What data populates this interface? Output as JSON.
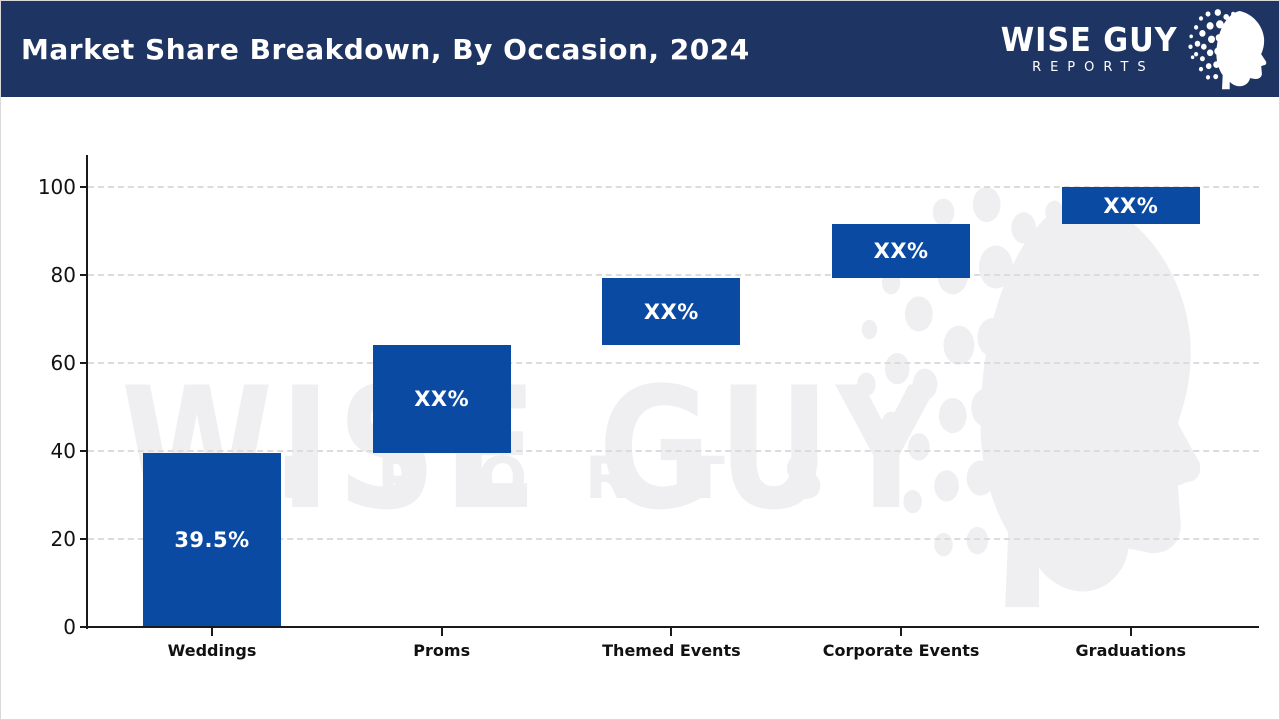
{
  "header": {
    "title": "Market Share Breakdown, By Occasion, 2024",
    "logo": {
      "line1": "WISE GUY",
      "line2": "REPORTS"
    },
    "bg_color": "#1e3462"
  },
  "watermark": {
    "line1": "WISE GUY",
    "line2": "REPORTS"
  },
  "chart_data": {
    "type": "bar",
    "subtype": "waterfall",
    "title": "Market Share Breakdown, By Occasion, 2024",
    "categories": [
      "Weddings",
      "Proms",
      "Themed Events",
      "Corporate Events",
      "Graduations"
    ],
    "segments": [
      {
        "category": "Weddings",
        "start": 0,
        "end": 39.5,
        "label": "39.5%"
      },
      {
        "category": "Proms",
        "start": 39.5,
        "end": 64.0,
        "label": "XX%"
      },
      {
        "category": "Themed Events",
        "start": 64.0,
        "end": 79.3,
        "label": "XX%"
      },
      {
        "category": "Corporate Events",
        "start": 79.3,
        "end": 91.5,
        "label": "XX%"
      },
      {
        "category": "Graduations",
        "start": 91.5,
        "end": 100.0,
        "label": "XX%"
      }
    ],
    "values_approx": [
      39.5,
      24.5,
      15.3,
      12.2,
      8.5
    ],
    "masked_label": "XX%",
    "xlabel": "",
    "ylabel": "",
    "ylim": [
      0,
      105
    ],
    "yticks": [
      0,
      20,
      40,
      60,
      80,
      100
    ],
    "grid": "horizontal-dashed",
    "legend": false,
    "bar_color": "#0b4aa2",
    "bar_label_color": "#ffffff"
  }
}
